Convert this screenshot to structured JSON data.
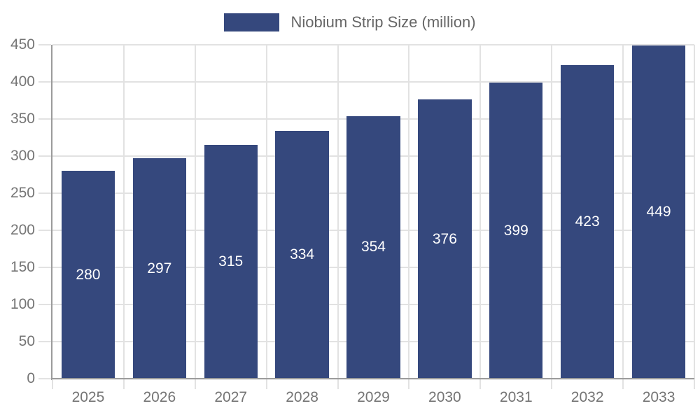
{
  "legend": {
    "label": "Niobium Strip Size (million)"
  },
  "colors": {
    "bar": "#35487d",
    "grid": "#e2e2e2",
    "axis": "#9b9b9b",
    "tick_label": "#757575",
    "legend_text": "#666666",
    "value_label": "#ffffff",
    "background": "#ffffff"
  },
  "chart_data": {
    "type": "bar",
    "categories": [
      "2025",
      "2026",
      "2027",
      "2028",
      "2029",
      "2030",
      "2031",
      "2032",
      "2033"
    ],
    "values": [
      280,
      297,
      315,
      334,
      354,
      376,
      399,
      423,
      449
    ],
    "title": "",
    "legend": "Niobium Strip Size (million)",
    "xlabel": "",
    "ylabel": "",
    "ylim": [
      0,
      450
    ],
    "ytick_step": 50,
    "yticks": [
      0,
      50,
      100,
      150,
      200,
      250,
      300,
      350,
      400,
      450
    ],
    "grid": "both",
    "legend_position": "top-center",
    "value_labels": "white, centered inside bars"
  }
}
